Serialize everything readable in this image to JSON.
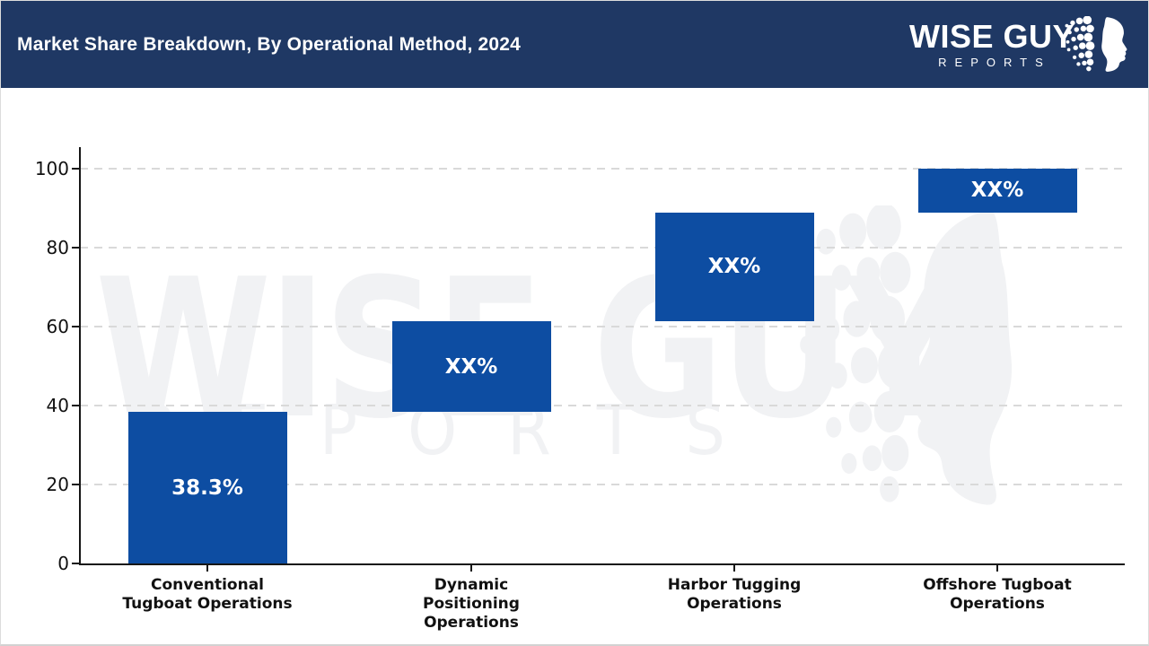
{
  "header": {
    "title": "Market Share Breakdown, By Operational Method, 2024"
  },
  "logo": {
    "name": "WISE GUY",
    "sub": "REPORTS"
  },
  "watermark": {
    "line1": "WISE GUY",
    "line2": "REPORTS"
  },
  "colors": {
    "header_bg": "#1f3864",
    "bar": "#0d4da2",
    "grid": "#d9d9d9",
    "axis": "#161616",
    "watermark": "#f1f2f4",
    "bar_label": "#ffffff"
  },
  "chart_data": {
    "type": "bar",
    "subtype": "floating-waterfall",
    "title": "Market Share Breakdown, By Operational Method, 2024",
    "xlabel": "",
    "ylabel": "",
    "ylim": [
      0,
      100
    ],
    "yticks": [
      0,
      20,
      40,
      60,
      80,
      100
    ],
    "grid": "horizontal-dashed",
    "legend": false,
    "bar_color": "#0d4da2",
    "categories": [
      "Conventional Tugboat Operations",
      "Dynamic Positioning Operations",
      "Harbor Tugging Operations",
      "Offshore Tugboat Operations"
    ],
    "categories_lines": [
      [
        "Conventional",
        "Tugboat Operations"
      ],
      [
        "Dynamic",
        "Positioning",
        "Operations"
      ],
      [
        "Harbor Tugging",
        "Operations"
      ],
      [
        "Offshore Tugboat",
        "Operations"
      ]
    ],
    "segments": [
      {
        "start": 0,
        "end": 38.3,
        "label": "38.3%"
      },
      {
        "start": 38.3,
        "end": 61.4,
        "label": "XX%"
      },
      {
        "start": 61.4,
        "end": 88.9,
        "label": "XX%"
      },
      {
        "start": 88.9,
        "end": 100,
        "label": "XX%"
      }
    ]
  }
}
